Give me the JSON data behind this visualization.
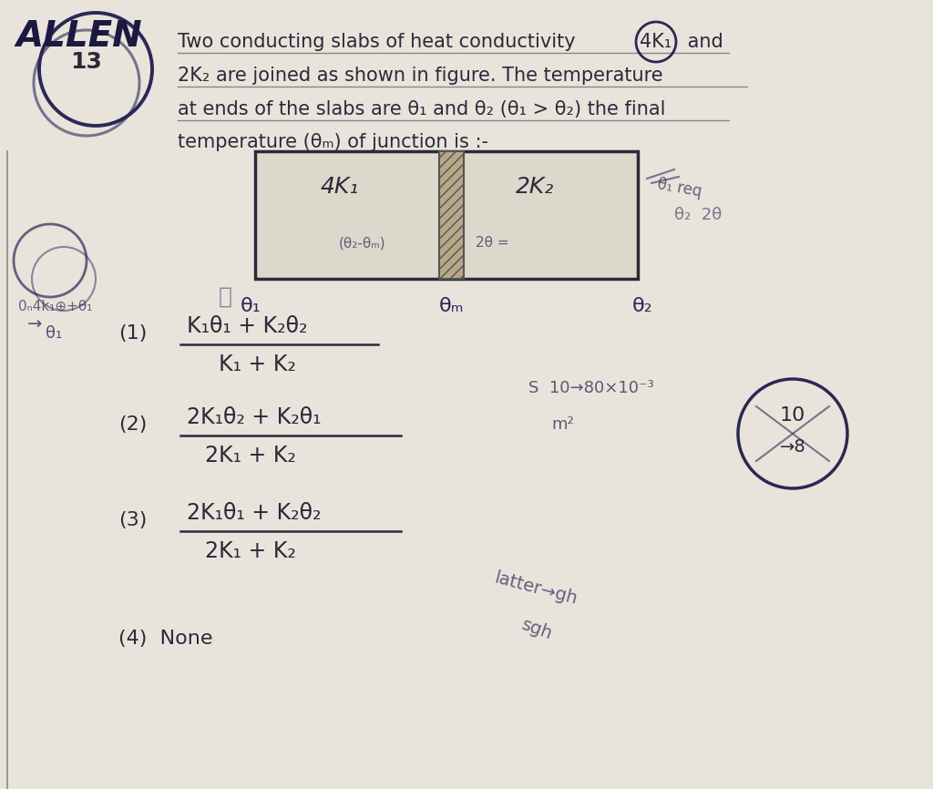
{
  "background_color": "#c8bfa8",
  "page_color": "#e8e4dc",
  "text_color": "#2a2a3a",
  "ink_color": "#2a2855",
  "q_number": "13",
  "line1a": "Two conducting slabs of heat conductivity",
  "line1b": "4K",
  "line1c": "and",
  "line2": "2K",
  "line2b": " are joined as shown in figure. The temperature",
  "line3": "at ends of the slabs are θ",
  "line3b": " and θ",
  "line3c": " (θ",
  "line3d": " > θ",
  "line3e": ") the final",
  "line4": "temperature (θ",
  "line4b": ") of junction is :-",
  "slab_left_label": "4K",
  "slab_right_label": "2K",
  "theta1_label": "θ",
  "thetam_label": "θ",
  "theta2_label": "θ",
  "opt1_num": "K₁θ₁ + K₂θ₂",
  "opt1_den": "K₁ + K₂",
  "opt2_num": "2K₁θ₂ + K₂θ₁",
  "opt2_den": "2K₁ + K₂",
  "opt3_num": "2K₁θ₁ + K₂θ₂",
  "opt3_den": "2K₁ + K₂",
  "opt4": "None"
}
